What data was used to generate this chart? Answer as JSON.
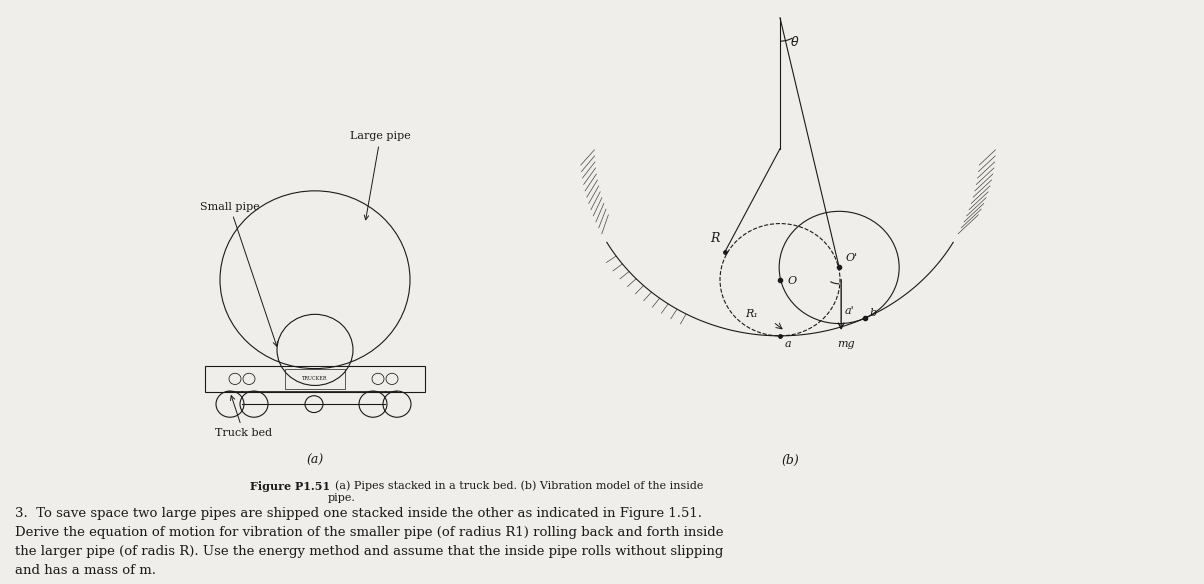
{
  "bg_color": "#f0eeea",
  "fig_width": 12.04,
  "fig_height": 5.84,
  "text_color": "#1a1a1a",
  "caption_bold": "Figure P1.51",
  "caption_normal": "  (a) Pipes stacked in a truck bed. (b) Vibration model of the inside\npipe.",
  "paragraph": "3.  To save space two large pipes are shipped one stacked inside the other as indicated in Figure 1.51.\nDerive the equation of motion for vibration of the smaller pipe (of radius R1) rolling back and forth inside\nthe larger pipe (of radis R). Use the energy method and assume that the inside pipe rolls without slipping\nand has a mass of m."
}
